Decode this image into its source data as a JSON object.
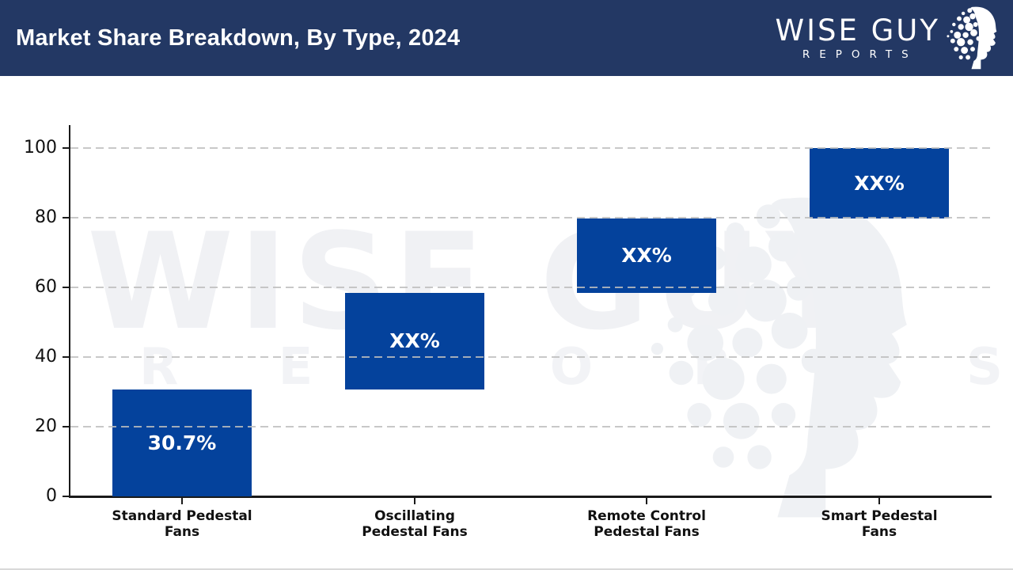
{
  "header": {
    "title": "Market Share Breakdown, By Type, 2024",
    "logo": {
      "line1": "WISE GUY",
      "line2": "REPORTS"
    }
  },
  "watermark": {
    "line1": "WISE GUY",
    "line2": "R E P O R T S"
  },
  "colors": {
    "header_bg": "#233864",
    "bar": "#04429c",
    "bar_label_text": "#ffffff",
    "grid": "#c9c9c9",
    "axis": "#1a1a1a",
    "watermark": "#f0f1f4"
  },
  "chart_data": {
    "type": "bar",
    "subtype": "waterfall",
    "title": "Market Share Breakdown, By Type, 2024",
    "categories": [
      "Standard Pedestal Fans",
      "Oscillating Pedestal Fans",
      "Remote Control Pedestal Fans",
      "Smart Pedestal Fans"
    ],
    "categories_display": [
      "Standard Pedestal\nFans",
      "Oscillating\nPedestal Fans",
      "Remote Control\nPedestal Fans",
      "Smart Pedestal\nFans"
    ],
    "segments": [
      {
        "start": 0,
        "end": 30.7,
        "label": "30.7%"
      },
      {
        "start": 30.7,
        "end": 58.4,
        "label": "XX%"
      },
      {
        "start": 58.4,
        "end": 79.8,
        "label": "XX%"
      },
      {
        "start": 79.8,
        "end": 100.0,
        "label": "XX%"
      }
    ],
    "values_est": [
      30.7,
      27.7,
      21.4,
      20.2
    ],
    "labels": [
      "30.7%",
      "XX%",
      "XX%",
      "XX%"
    ],
    "xlabel": "",
    "ylabel": "",
    "yticks": [
      0,
      20,
      40,
      60,
      80,
      100
    ],
    "ylim": [
      0,
      106
    ],
    "grid": "horizontal dashed, drawn over bars",
    "legend": "none"
  }
}
